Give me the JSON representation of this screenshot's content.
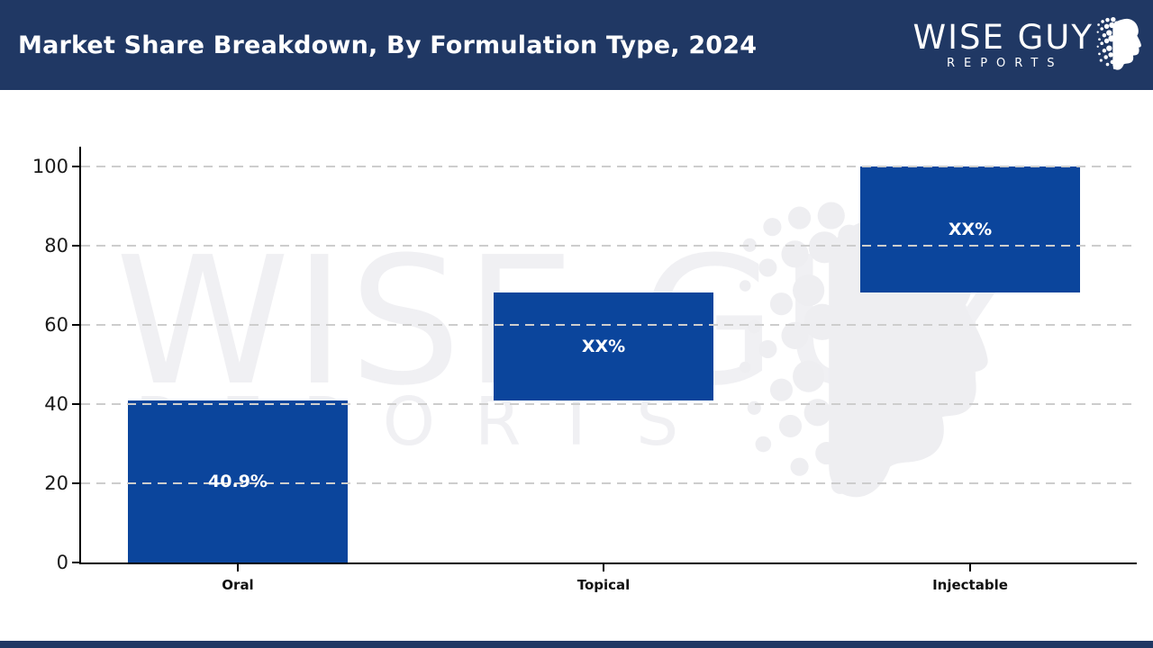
{
  "header": {
    "title": "Market Share Breakdown, By Formulation Type, 2024",
    "logo": {
      "wordmark": "WISE GUY",
      "sub": "REPORTS"
    }
  },
  "watermark": {
    "wordmark": "WISE GUY",
    "sub": "REPORTS"
  },
  "colors": {
    "header_bg": "#203864",
    "footer_bg": "#203864",
    "bar": "#0b459c",
    "grid": "#cdcdcd",
    "axis": "#000000",
    "value_label": "#ffffff",
    "watermark": "#f0f0f3"
  },
  "chart_data": {
    "type": "bar",
    "variant": "waterfall",
    "title": "Market Share Breakdown, By Formulation Type, 2024",
    "categories": [
      "Oral",
      "Topical",
      "Injectable"
    ],
    "segments": [
      {
        "category": "Oral",
        "start": 0,
        "end": 40.9,
        "value_label": "40.9%"
      },
      {
        "category": "Topical",
        "start": 40.9,
        "end": 68.2,
        "value_label": "XX%"
      },
      {
        "category": "Injectable",
        "start": 68.2,
        "end": 100,
        "value_label": "XX%"
      }
    ],
    "ylim": [
      0,
      100
    ],
    "yticks": [
      0,
      20,
      40,
      60,
      80,
      100
    ],
    "xlabel": "",
    "ylabel": "",
    "grid": {
      "axis": "y",
      "style": "dashed",
      "position": "above-bars"
    },
    "legend": "none",
    "bar_color": "#0b459c",
    "value_label_color": "#ffffff"
  }
}
